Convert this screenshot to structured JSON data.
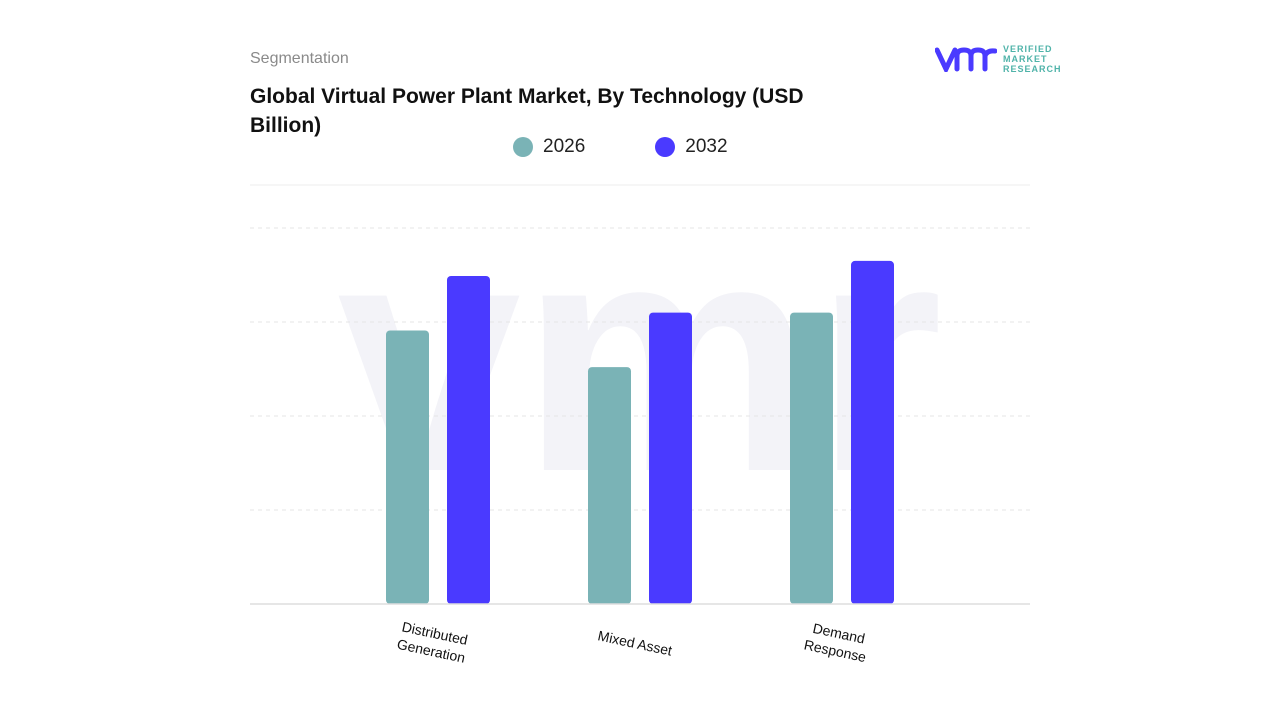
{
  "header": {
    "section": "Segmentation",
    "title": "Global Virtual Power Plant Market, By Technology (USD Billion)"
  },
  "logo": {
    "line1": "VERIFIED",
    "line2": "MARKET",
    "line3": "RESEARCH"
  },
  "chart_data": {
    "type": "bar",
    "title": "Global Virtual Power Plant Market, By Technology (USD Billion)",
    "categories": [
      "Distributed Generation",
      "Mixed Asset",
      "Demand Response"
    ],
    "series": [
      {
        "name": "2026",
        "color": "#7ab3b6",
        "values": [
          2.91,
          2.52,
          3.1
        ]
      },
      {
        "name": "2032",
        "color": "#4a3aff",
        "values": [
          3.49,
          3.1,
          3.65
        ]
      }
    ],
    "ylim": [
      0,
      4
    ],
    "grid": true,
    "legend": "top",
    "xlabel": "",
    "ylabel": ""
  }
}
